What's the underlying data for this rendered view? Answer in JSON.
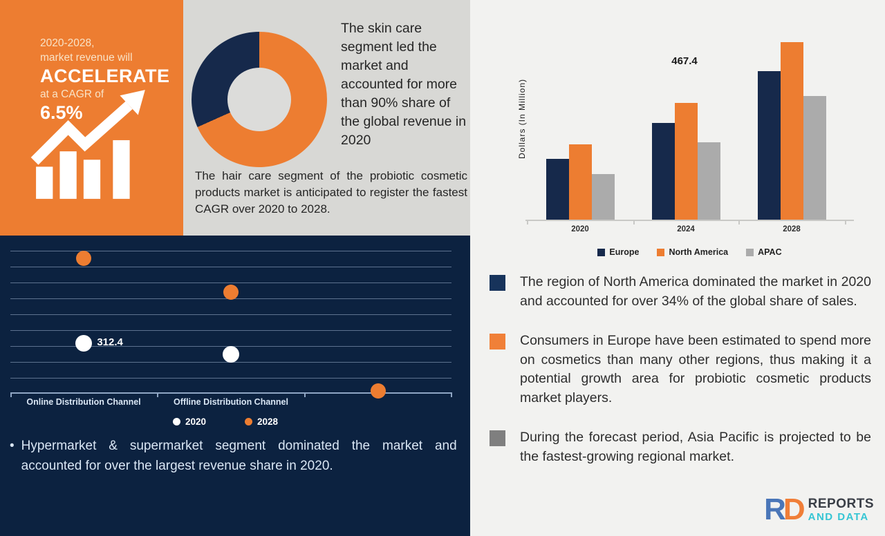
{
  "accelerate_panel": {
    "period": "2020-2028,",
    "line2": "market revenue will",
    "emphasis": "ACCELERATE",
    "line4": "at a CAGR of",
    "cagr": "6.5%"
  },
  "segment_panel": {
    "headline": "The skin care segment led the market and accounted for more than 90% share of the global revenue in 2020",
    "body": "The hair care segment of the probiotic cosmetic products market is anticipated to register the fastest CAGR over 2020 to 2028."
  },
  "distribution_panel": {
    "bullet_marker": "•",
    "bullet": "Hypermarket & supermarket segment dominated the market and accounted for over the largest revenue share in 2020."
  },
  "regional_bullets": [
    {
      "color": "#17335B",
      "text": "The region of North America dominated the market in 2020 and accounted for over 34% of the global share of sales."
    },
    {
      "color": "#F08038",
      "text": "Consumers in Europe have been estimated to spend more on cosmetics than many other regions, thus making it a potential growth area for probiotic cosmetic products market players."
    },
    {
      "color": "#7F7F7F",
      "text": "During the forecast period, Asia Pacific is projected to be the fastest-growing regional market."
    }
  ],
  "logo": {
    "mark_r": "R",
    "mark_d": "D",
    "line1": "REPORTS",
    "line2": "AND DATA"
  },
  "colors": {
    "orange": "#ED7D31",
    "navy_dark": "#0C2240",
    "navy": "#16294B",
    "gray_bar": "#ABABAB",
    "panel_gray": "#D8D8D5",
    "panel_light": "#F2F2F0",
    "logo_blue": "#4A76B8",
    "logo_teal": "#35C5D4"
  },
  "chart_data": [
    {
      "type": "scatter",
      "title": "",
      "categories": [
        "Online Distribution Channel",
        "Offline Distribution Channel",
        ""
      ],
      "series": [
        {
          "name": "2020",
          "color": "#FFFFFF",
          "values": [
            312.4,
            240,
            null
          ]
        },
        {
          "name": "2028",
          "color": "#ED7D31",
          "values": [
            850,
            635,
            10
          ]
        }
      ],
      "point_label": {
        "series_index": 0,
        "point_index": 0,
        "text": "312.4"
      },
      "ylim": [
        0,
        900
      ],
      "gridlines": 9,
      "legend_position": "bottom"
    },
    {
      "type": "bar",
      "title": "",
      "categories": [
        "2020",
        "2024",
        "2028"
      ],
      "series": [
        {
          "name": "Europe",
          "color": "#16294B",
          "values": [
            243,
            387,
            595
          ]
        },
        {
          "name": "North America",
          "color": "#ED7D31",
          "values": [
            301,
            467.4,
            710
          ]
        },
        {
          "name": "APAC",
          "color": "#ABABAB",
          "values": [
            183,
            310,
            495
          ]
        }
      ],
      "xlabel": "",
      "ylabel": "Dollars (In Million)",
      "ylim": [
        0,
        750
      ],
      "annotation": {
        "text": "467.4",
        "category": "2024",
        "series": "North America"
      },
      "legend_position": "bottom"
    },
    {
      "type": "pie",
      "labels": [
        "",
        ""
      ],
      "values": [
        68.3,
        31.7
      ],
      "colors": [
        "#ED7D31",
        "#16294B"
      ],
      "hole": true
    }
  ]
}
